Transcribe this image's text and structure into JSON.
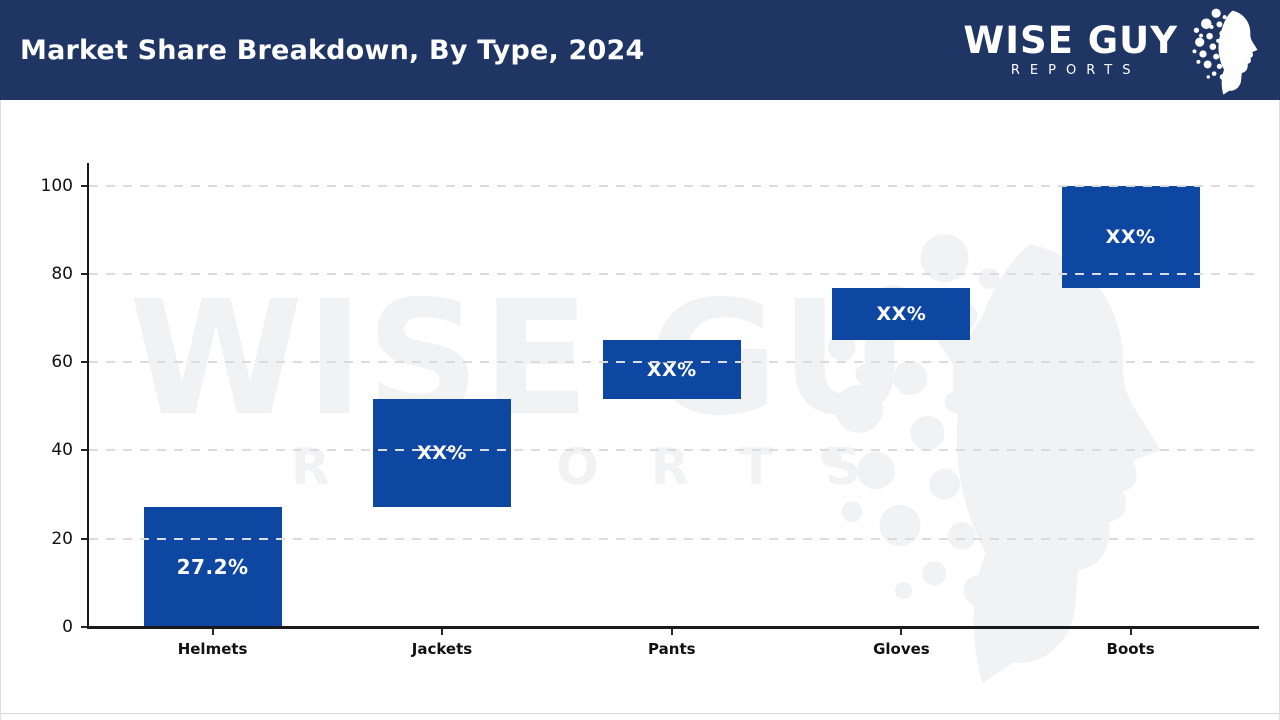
{
  "header": {
    "title": "Market Share Breakdown, By Type, 2024",
    "logo": {
      "line1": "WISE GUY",
      "line2": "REPORTS"
    }
  },
  "watermark": {
    "line1": "WISE GUY",
    "line2": "REPORTS"
  },
  "colors": {
    "header_bg": "#1f3563",
    "bar": "#0e47a1",
    "bar_label": "#ffffff",
    "gridline": "#dcdcdc",
    "axis": "#1a1a1a",
    "watermark": "#f1f2f4"
  },
  "chart_data": {
    "type": "bar",
    "subtype": "waterfall",
    "title": "Market Share Breakdown, By Type, 2024",
    "xlabel": "",
    "ylabel": "",
    "ylim": [
      0,
      100
    ],
    "yticks": [
      "0",
      "20",
      "40",
      "60",
      "80",
      "100"
    ],
    "ytick_values": [
      0,
      20,
      40,
      60,
      80,
      100
    ],
    "grid": "horizontal-dashed",
    "legend": null,
    "categories": [
      "Helmets",
      "Jackets",
      "Pants",
      "Gloves",
      "Boots"
    ],
    "segments": [
      {
        "category": "Helmets",
        "start": 0,
        "end": 27.2,
        "label": "27.2%"
      },
      {
        "category": "Jackets",
        "start": 27.2,
        "end": 51.6,
        "label": "XX%"
      },
      {
        "category": "Pants",
        "start": 51.6,
        "end": 65.0,
        "label": "XX%"
      },
      {
        "category": "Gloves",
        "start": 65.0,
        "end": 76.7,
        "label": "XX%"
      },
      {
        "category": "Boots",
        "start": 76.7,
        "end": 100,
        "label": "XX%"
      }
    ]
  }
}
